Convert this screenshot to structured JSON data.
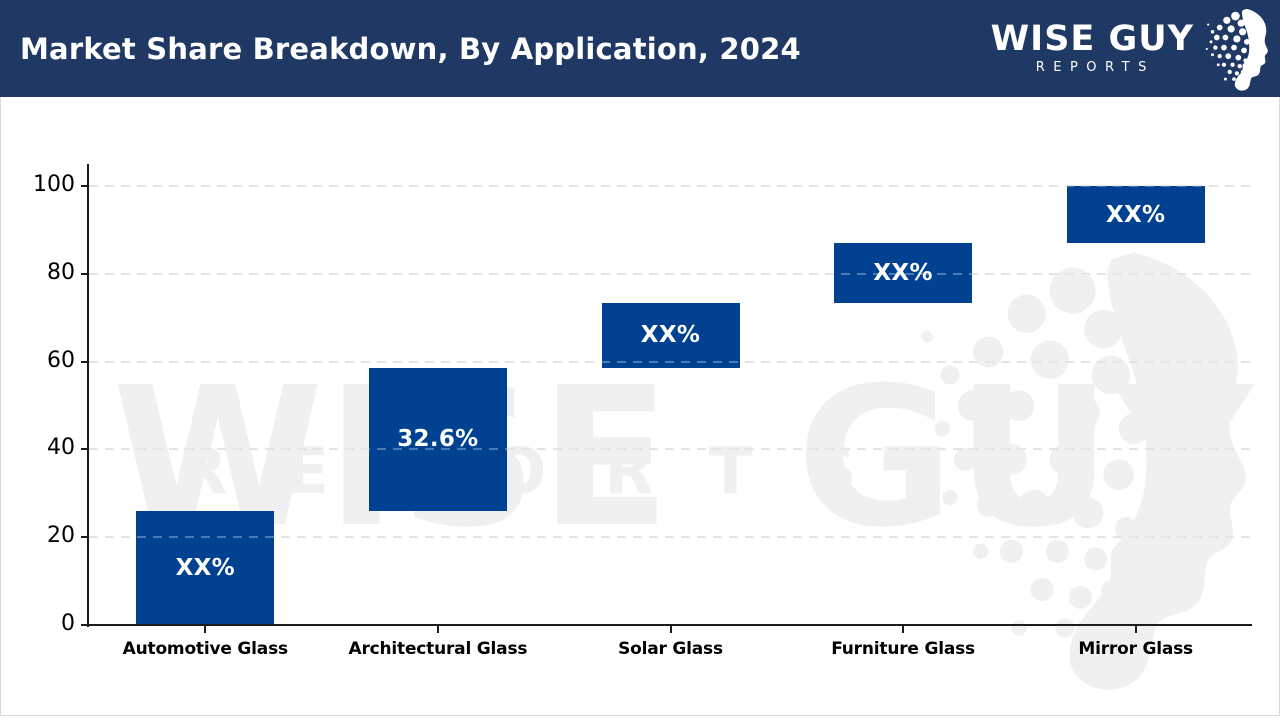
{
  "header": {
    "title": "Market Share Breakdown, By Application, 2024",
    "logo": {
      "name": "WISE GUY",
      "sub": "REPORTS"
    }
  },
  "watermark": {
    "line1": "WISE GUY",
    "line2": "REPORTS"
  },
  "chart_data": {
    "type": "bar",
    "subtype": "floating-waterfall",
    "title": "Market Share Breakdown, By Application, 2024",
    "categories": [
      "Automotive Glass",
      "Architectural Glass",
      "Solar Glass",
      "Furniture Glass",
      "Mirror Glass"
    ],
    "bars": [
      {
        "category": "Automotive Glass",
        "start": 0,
        "end": 26,
        "label": "XX%"
      },
      {
        "category": "Architectural Glass",
        "start": 26,
        "end": 58.6,
        "label": "32.6%"
      },
      {
        "category": "Solar Glass",
        "start": 58.6,
        "end": 73.3,
        "label": "XX%"
      },
      {
        "category": "Furniture Glass",
        "start": 73.3,
        "end": 86.9,
        "label": "XX%"
      },
      {
        "category": "Mirror Glass",
        "start": 86.9,
        "end": 100,
        "label": "XX%"
      }
    ],
    "yticks": [
      0,
      20,
      40,
      60,
      80,
      100
    ],
    "ylim": [
      0,
      105
    ],
    "xlabel": "",
    "ylabel": "",
    "grid": "dashed-horizontal",
    "legend": "none"
  },
  "colors": {
    "header_bg": "#1f3864",
    "bar": "#004191",
    "grid": "#d9d9d9",
    "axis": "#1c1c1c",
    "title_text": "#ffffff",
    "watermark": "#f0f0f2",
    "frame_border": "#d9d9d9"
  }
}
